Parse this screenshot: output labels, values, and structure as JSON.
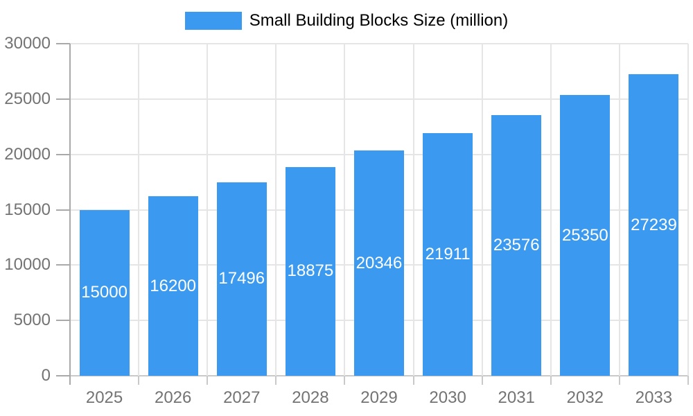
{
  "chart_data": {
    "type": "bar",
    "title": "",
    "legend_label": "Small Building Blocks Size (million)",
    "legend_position": "top",
    "categories": [
      "2025",
      "2026",
      "2027",
      "2028",
      "2029",
      "2030",
      "2031",
      "2032",
      "2033"
    ],
    "series": [
      {
        "name": "Small Building Blocks Size (million)",
        "values": [
          15000,
          16200,
          17496,
          18875,
          20346,
          21911,
          23576,
          25350,
          27239
        ]
      }
    ],
    "value_labels": [
      "15000",
      "16200",
      "17496",
      "18875",
      "20346",
      "21911",
      "23576",
      "25350",
      "27239"
    ],
    "xlabel": "",
    "ylabel": "",
    "ylim": [
      0,
      30000
    ],
    "yticks": [
      "0",
      "5000",
      "10000",
      "15000",
      "20000",
      "25000",
      "30000"
    ],
    "grid": "on",
    "colors": {
      "bar": "#3B9AEF",
      "gridline": "#E5E5E5",
      "axis_line": "#A9A9A9",
      "baseline": "#C9C9C9",
      "axis_text": "#737373",
      "value_text": "#FFFFFF",
      "background": "#FFFFFF"
    }
  }
}
